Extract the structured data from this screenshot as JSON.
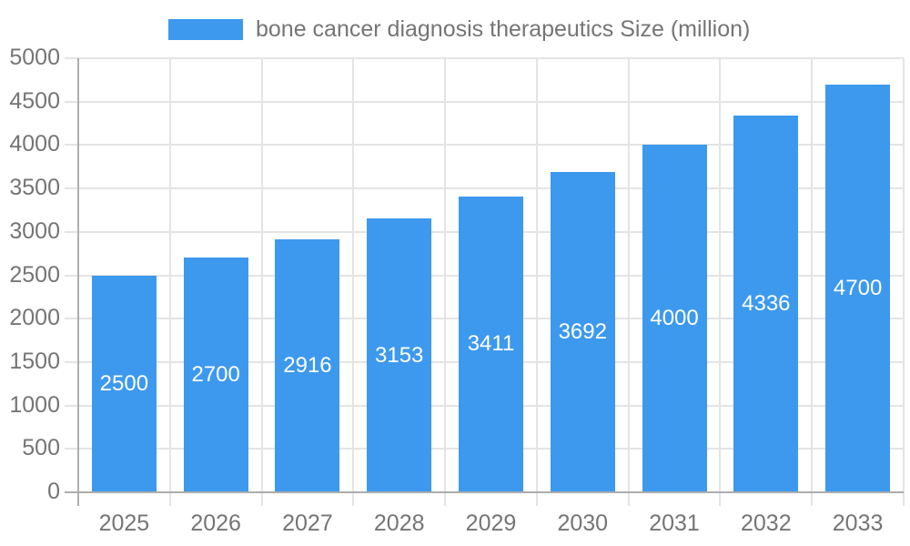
{
  "legend": {
    "label": "bone cancer diagnosis therapeutics Size (million)"
  },
  "chart_data": {
    "type": "bar",
    "title": "",
    "xlabel": "",
    "ylabel": "",
    "categories": [
      "2025",
      "2026",
      "2027",
      "2028",
      "2029",
      "2030",
      "2031",
      "2032",
      "2033"
    ],
    "series": [
      {
        "name": "bone cancer diagnosis therapeutics Size (million)",
        "values": [
          2500,
          2700,
          2916,
          3153,
          3411,
          3692,
          4000,
          4336,
          4700
        ]
      }
    ],
    "data_labels_shown": true,
    "ylim": [
      0,
      5000
    ],
    "ytick_step": 500,
    "ytick_labels": [
      "0",
      "500",
      "1000",
      "1500",
      "2000",
      "2500",
      "3000",
      "3500",
      "4000",
      "4500",
      "5000"
    ],
    "grid": true,
    "legend_position": "top-center",
    "colors": {
      "bar": "#3D99EE",
      "bar_label": "#FFFFFF",
      "axis_text": "#757575",
      "gridline": "#E4E4E4",
      "axis_line": "#ADADAD",
      "background": "#FFFFFF"
    }
  }
}
